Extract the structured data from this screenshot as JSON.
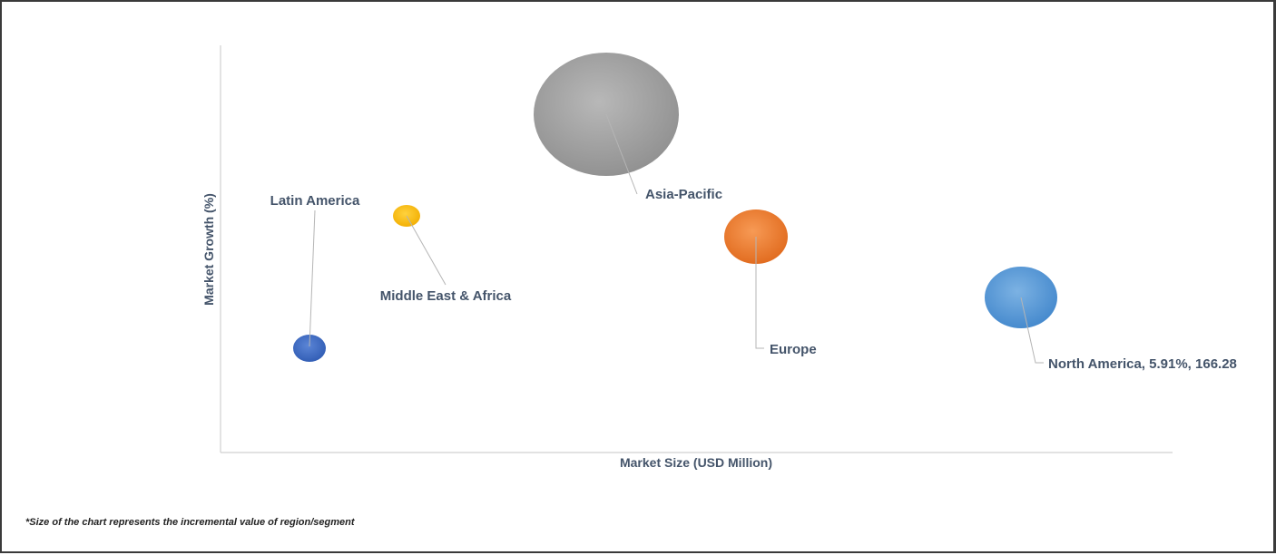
{
  "chart_data": {
    "type": "bubble",
    "xlabel": "Market Size (USD Million)",
    "ylabel": "Market Growth (%)",
    "axis_ticks_shown": false,
    "grid": false,
    "legend": "none",
    "points": [
      {
        "label": "Asia-Pacific",
        "color": "#a5a5a5"
      },
      {
        "label": "Latin America",
        "color": "#4472c4"
      },
      {
        "label": "Middle East & Africa",
        "color": "#ffc000"
      },
      {
        "label": "Europe",
        "color": "#ed7d31"
      },
      {
        "label": "North America, 5.91%, 166.28",
        "color": "#5b9bd5"
      }
    ]
  },
  "footnote": "*Size of the chart represents the incremental value of region/segment"
}
